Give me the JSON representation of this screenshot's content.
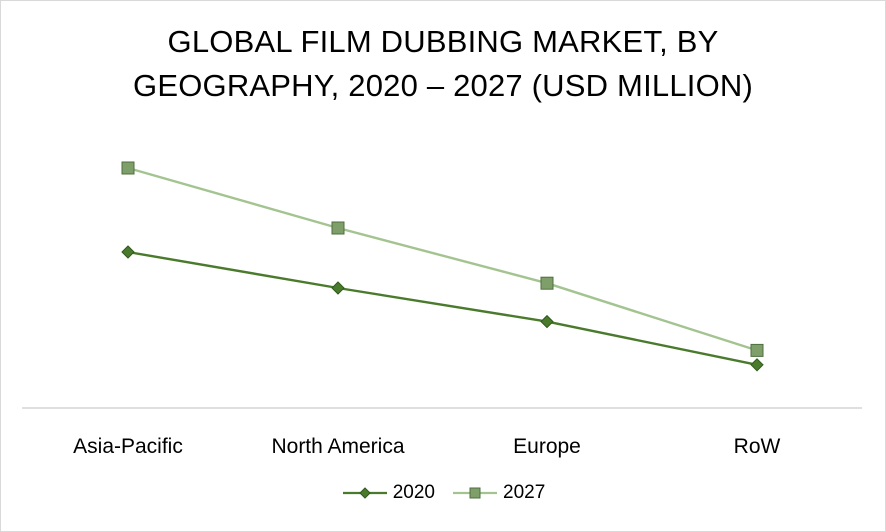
{
  "chart_data": {
    "type": "line",
    "title_lines": [
      "GLOBAL FILM DUBBING MARKET, BY",
      "GEOGRAPHY, 2020 – 2027 (USD MILLION)"
    ],
    "categories": [
      "Asia-Pacific",
      "North America",
      "Europe",
      "RoW"
    ],
    "series": [
      {
        "name": "2020",
        "values": [
          65,
          50,
          36,
          18
        ],
        "color": "#4a7a2c",
        "marker": "diamond"
      },
      {
        "name": "2027",
        "values": [
          100,
          75,
          52,
          24
        ],
        "color": "#a3c490",
        "marker": "square"
      }
    ],
    "ylim": [
      0,
      105
    ],
    "grid": false,
    "legend_position": "bottom"
  }
}
